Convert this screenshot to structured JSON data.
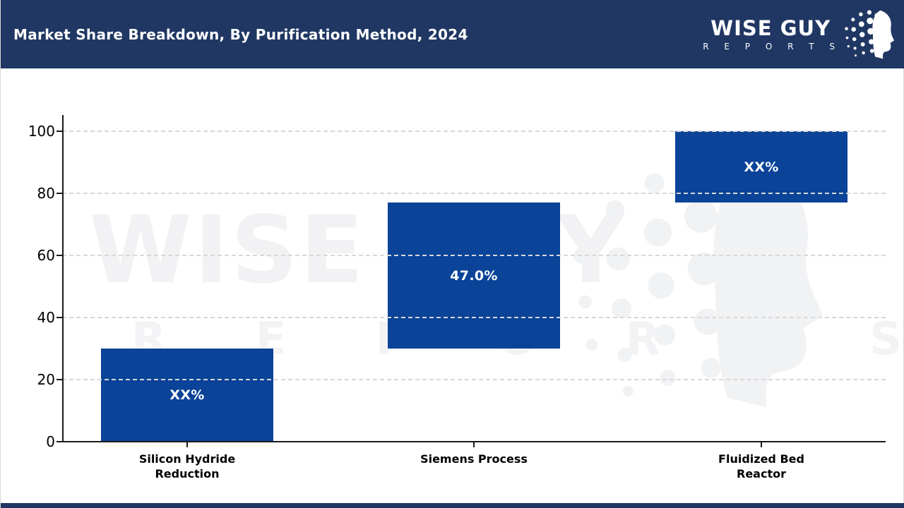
{
  "header": {
    "title": "Market Share Breakdown, By Purification Method, 2024",
    "logo": {
      "name_line": "WISE GUY",
      "reports_line": "R E P O R T S"
    }
  },
  "watermark": {
    "name_line": "WISE GUY",
    "reports_line": "R E P O R T S"
  },
  "chart_data": {
    "type": "bar",
    "subtype": "waterfall",
    "title": "Market Share Breakdown, By Purification Method, 2024",
    "categories": [
      "Silicon Hydride\nReduction",
      "Siemens Process",
      "Fluidized Bed\nReactor"
    ],
    "segments": [
      {
        "category": "Silicon Hydride Reduction",
        "start": 0,
        "end": 30,
        "value": 30,
        "label": "XX%"
      },
      {
        "category": "Siemens Process",
        "start": 30,
        "end": 77,
        "value": 47,
        "label": "47.0%"
      },
      {
        "category": "Fluidized Bed Reactor",
        "start": 77,
        "end": 100,
        "value": 23,
        "label": "XX%"
      }
    ],
    "ylim": [
      0,
      100
    ],
    "yticks": [
      0,
      20,
      40,
      60,
      80,
      100
    ],
    "grid": "dashed-horizontal-over-bars",
    "legend": "none",
    "bar_color": "#0a4398",
    "bar_label_color": "#ffffff"
  },
  "colors": {
    "header_bg": "#203763",
    "footer_bg": "#203763",
    "bar": "#0a4398",
    "gridline": "#d8d8d8",
    "axis": "#1a1a1a",
    "watermark": "#f2f2f4"
  }
}
